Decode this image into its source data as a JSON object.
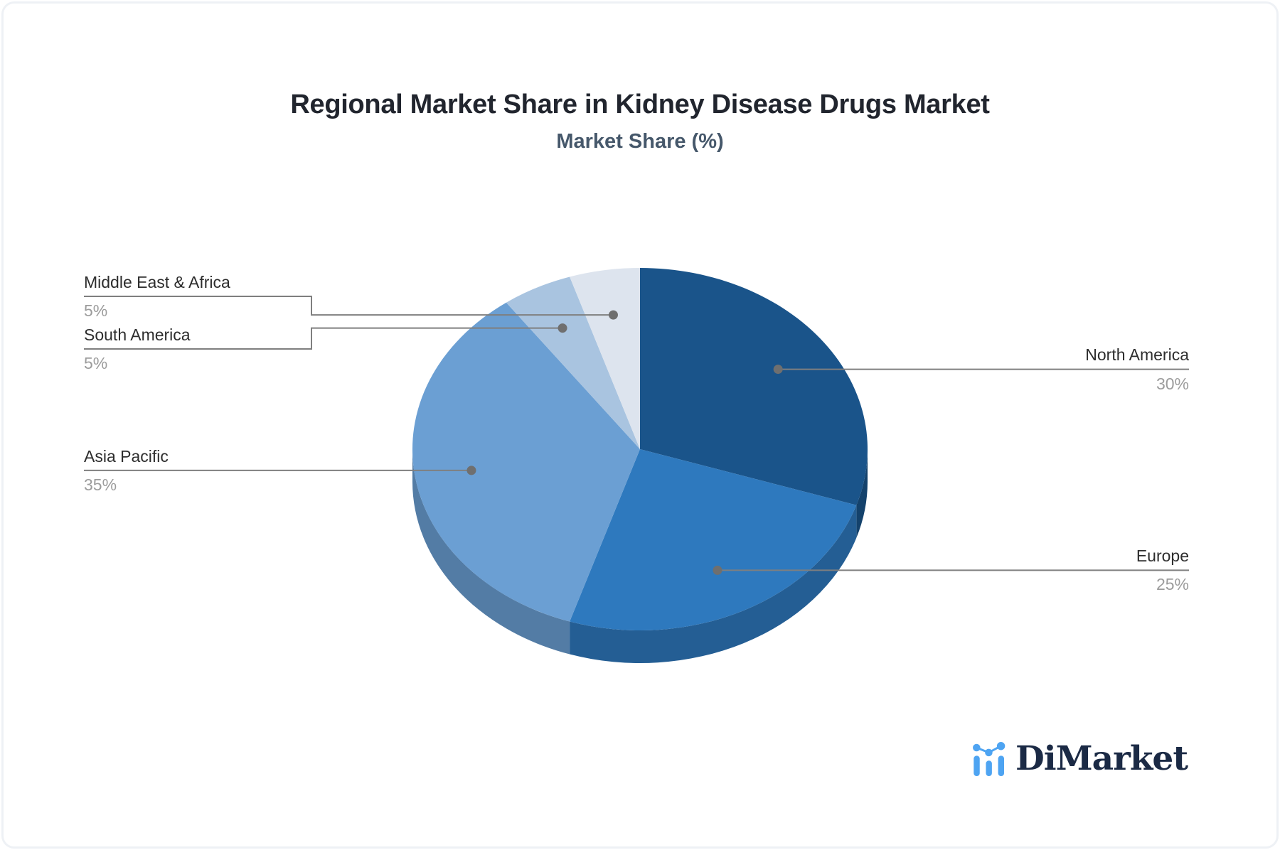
{
  "title": "Regional Market Share in Kidney Disease Drugs Market",
  "subtitle": "Market Share (%)",
  "brand": {
    "name": "DiMarket"
  },
  "colors": {
    "title_text": "#21252e",
    "subtitle_text": "#46586b",
    "label_text": "#2d2d2d",
    "value_text": "#9c9c9c",
    "leader_line": "#7f7f7f",
    "leader_dot": "#6f6f6f",
    "brand_blue": "#4ea4f2",
    "brand_navy": "#1b2a45"
  },
  "chart_data": {
    "type": "pie",
    "title": "Regional Market Share in Kidney Disease Drugs Market",
    "subtitle": "Market Share (%)",
    "unit": "%",
    "style": "3d-pie",
    "start_angle": "12-o-clock",
    "direction": "clockwise",
    "legend_position": "none",
    "labels": "outside-with-leader-lines",
    "segments": [
      {
        "label": "North America",
        "value": 30,
        "display": "30%",
        "color": "#1a548a"
      },
      {
        "label": "Europe",
        "value": 25,
        "display": "25%",
        "color": "#2e79be"
      },
      {
        "label": "Asia Pacific",
        "value": 35,
        "display": "35%",
        "color": "#6b9fd3"
      },
      {
        "label": "South America",
        "value": 5,
        "display": "5%",
        "color": "#a9c4e0"
      },
      {
        "label": "Middle East & Africa",
        "value": 5,
        "display": "5%",
        "color": "#dde4ee"
      }
    ]
  }
}
